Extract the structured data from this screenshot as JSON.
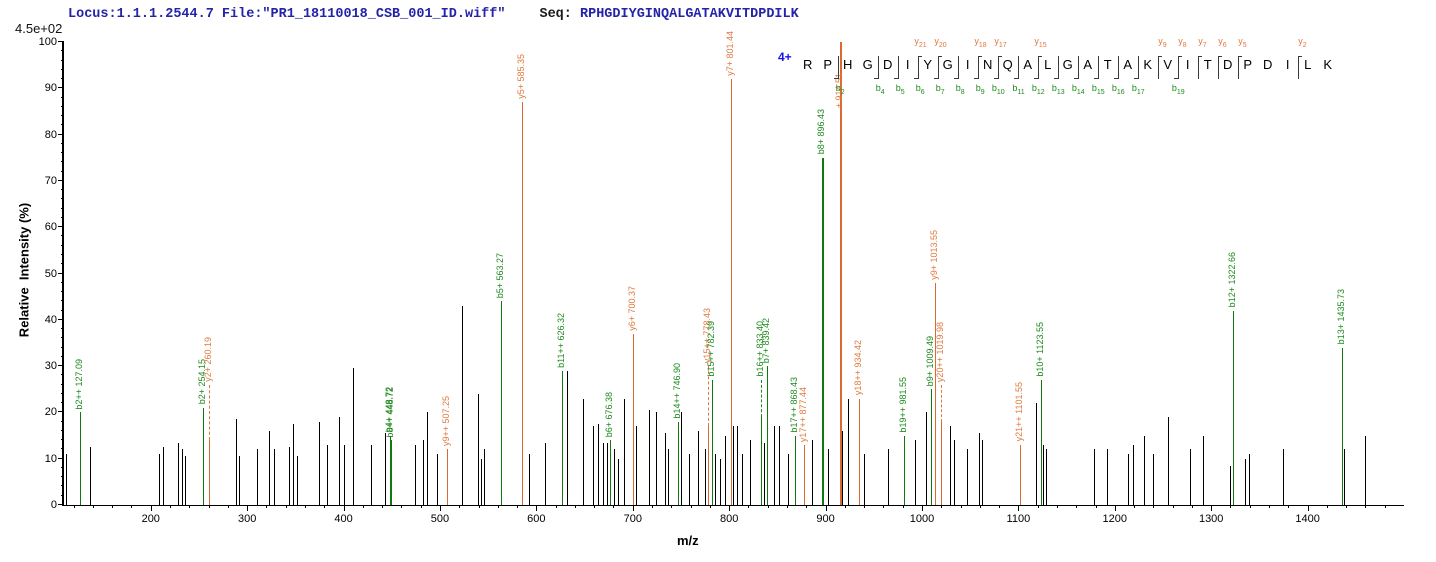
{
  "header": {
    "locus_file": "Locus:1.1.1.2544.7 File:\"PR1_18110018_CSB_001_ID.wiff\"",
    "seq_label": "Seq:",
    "sequence": "RPHGDIYGINQALGATAKVITDPDILK"
  },
  "colors": {
    "title": "#2424a8",
    "charge": "#1414e6",
    "b_ion_label": "#1d8a1d",
    "b_ion_peak": "#0e7a0e",
    "y_ion_label": "#e0793f",
    "y_ion_peak": "#d96b32",
    "unlabeled_peak": "#000000",
    "axis": "#000000"
  },
  "axes": {
    "y_label": "Relative  Intensity (%)",
    "x_label": "m/z",
    "y_max_label": "4.5e+02",
    "x_range": [
      110,
      1500
    ],
    "y_range": [
      0,
      100
    ],
    "x_ticks": [
      200,
      300,
      400,
      500,
      600,
      700,
      800,
      900,
      1000,
      1100,
      1200,
      1300,
      1400
    ],
    "y_ticks": [
      0,
      10,
      20,
      30,
      40,
      50,
      60,
      70,
      80,
      90,
      100
    ],
    "x_minor_step": 20,
    "y_minor_step": 2
  },
  "sequence_map": {
    "charge_label": "4+",
    "residues": [
      {
        "aa": "R"
      },
      {
        "aa": "P",
        "b": "b2"
      },
      {
        "aa": "H"
      },
      {
        "aa": "G",
        "b": "b4"
      },
      {
        "aa": "D",
        "b": "b5"
      },
      {
        "aa": "I",
        "b": "b6",
        "y": "y21"
      },
      {
        "aa": "Y",
        "b": "b7",
        "y": "y20"
      },
      {
        "aa": "G",
        "b": "b8"
      },
      {
        "aa": "I",
        "b": "b9",
        "y": "y18"
      },
      {
        "aa": "N",
        "b": "b10",
        "y": "y17"
      },
      {
        "aa": "Q",
        "b": "b11"
      },
      {
        "aa": "A",
        "b": "b12",
        "y": "y15"
      },
      {
        "aa": "L",
        "b": "b13"
      },
      {
        "aa": "G",
        "b": "b14"
      },
      {
        "aa": "A",
        "b": "b15"
      },
      {
        "aa": "T",
        "b": "b16"
      },
      {
        "aa": "A",
        "b": "b17"
      },
      {
        "aa": "K",
        "y": "y9"
      },
      {
        "aa": "V",
        "b": "b19",
        "y": "y8"
      },
      {
        "aa": "I",
        "y": "y7"
      },
      {
        "aa": "T",
        "y": "y6"
      },
      {
        "aa": "D",
        "y": "y5"
      },
      {
        "aa": "P"
      },
      {
        "aa": "D"
      },
      {
        "aa": "I",
        "y": "y2"
      },
      {
        "aa": "L"
      },
      {
        "aa": "K"
      }
    ]
  },
  "chart_data": {
    "type": "bar",
    "subtype": "ms2-fragment-spectrum",
    "title": "Locus:1.1.1.2544.7 File:\"PR1_18110018_CSB_001_ID.wiff\" Seq: RPHGDIYGINQALGATAKVITDPDILK",
    "xlabel": "m/z",
    "ylabel": "Relative  Intensity (%)",
    "xlim": [
      110,
      1500
    ],
    "ylim": [
      0,
      100
    ],
    "intensity_scale_max": "4.5e+02",
    "precursor_charge": "4+",
    "labeled_peaks": [
      {
        "mz": 127.09,
        "pct": 20,
        "ion": "b",
        "label": "b2++ 127.09"
      },
      {
        "mz": 254.15,
        "pct": 21,
        "ion": "b",
        "label": "b2+ 254.15"
      },
      {
        "mz": 260.19,
        "pct": 14,
        "ion": "y",
        "label": "y2+ 260.19",
        "dashed": true,
        "label_at": 26
      },
      {
        "mz": 448.3,
        "pct": 15,
        "ion": "b",
        "label": "b4+ 448.72"
      },
      {
        "mz": 449.1,
        "pct": 14,
        "ion": "b",
        "label": "b8++ 448.72"
      },
      {
        "mz": 507.25,
        "pct": 12,
        "ion": "y",
        "label": "y9++ 507.25"
      },
      {
        "mz": 563.27,
        "pct": 44,
        "ion": "b",
        "label": "b5+ 563.27"
      },
      {
        "mz": 585.35,
        "pct": 87,
        "ion": "y",
        "label": "y5+ 585.35"
      },
      {
        "mz": 626.32,
        "pct": 29,
        "ion": "b",
        "label": "b11++ 626.32"
      },
      {
        "mz": 676.38,
        "pct": 14,
        "ion": "b",
        "label": "b6+ 676.38"
      },
      {
        "mz": 700.37,
        "pct": 37,
        "ion": "y",
        "label": "y6+ 700.37"
      },
      {
        "mz": 746.9,
        "pct": 18,
        "ion": "b",
        "label": "b14++ 746.90"
      },
      {
        "mz": 778.43,
        "pct": 17,
        "ion": "y",
        "label": "y15++ 778.43",
        "dashed": true,
        "label_at": 30
      },
      {
        "mz": 782.39,
        "pct": 27,
        "ion": "b",
        "label": "b15++ 782.39"
      },
      {
        "mz": 801.44,
        "pct": 92,
        "ion": "y",
        "label": "y7+ 801.44"
      },
      {
        "mz": 833.4,
        "pct": 19,
        "ion": "b",
        "label": "b16++ 833.40",
        "dashed": true,
        "label_at": 27
      },
      {
        "mz": 839.42,
        "pct": 30,
        "ion": "b",
        "label": "b7+ 839.42"
      },
      {
        "mz": 868.43,
        "pct": 15,
        "ion": "b",
        "label": "b17++ 868.43"
      },
      {
        "mz": 877.44,
        "pct": 13,
        "ion": "y",
        "label": "y17++ 877.44"
      },
      {
        "mz": 896.43,
        "pct": 75,
        "ion": "b",
        "label": "b8+ 896.43",
        "w": 2
      },
      {
        "mz": 914.51,
        "pct": 100,
        "ion": "y",
        "label": "+ 914.51",
        "label_at": 85,
        "w": 2
      },
      {
        "mz": 934.42,
        "pct": 23,
        "ion": "y",
        "label": "y18++ 934.42"
      },
      {
        "mz": 981.55,
        "pct": 15,
        "ion": "b",
        "label": "b19++ 981.55"
      },
      {
        "mz": 1009.49,
        "pct": 25,
        "ion": "b",
        "label": "b9+ 1009.49"
      },
      {
        "mz": 1013.55,
        "pct": 48,
        "ion": "y",
        "label": "y9+ 1013.55"
      },
      {
        "mz": 1019.98,
        "pct": 18,
        "ion": "y",
        "label": "y20++ 1019.98",
        "dashed": true,
        "label_at": 26
      },
      {
        "mz": 1101.55,
        "pct": 13,
        "ion": "y",
        "label": "y21++ 1101.55"
      },
      {
        "mz": 1123.55,
        "pct": 27,
        "ion": "b",
        "label": "b10+ 1123.55"
      },
      {
        "mz": 1322.66,
        "pct": 42,
        "ion": "b",
        "label": "b12+ 1322.66"
      },
      {
        "mz": 1435.73,
        "pct": 34,
        "ion": "b",
        "label": "b13+ 1435.73"
      }
    ],
    "unlabeled_peaks": [
      [
        112,
        11
      ],
      [
        137,
        12.5
      ],
      [
        209,
        11
      ],
      [
        213,
        12.5
      ],
      [
        228,
        13.5
      ],
      [
        232,
        12
      ],
      [
        236,
        10.5
      ],
      [
        288,
        18.5
      ],
      [
        292,
        10.5
      ],
      [
        310,
        12
      ],
      [
        323,
        16
      ],
      [
        328,
        12
      ],
      [
        343,
        12.5
      ],
      [
        348,
        17.5
      ],
      [
        352,
        10.5
      ],
      [
        375,
        18
      ],
      [
        383,
        13
      ],
      [
        395,
        19
      ],
      [
        400,
        13
      ],
      [
        410,
        29.5
      ],
      [
        428,
        13
      ],
      [
        443,
        15.5
      ],
      [
        474,
        13
      ],
      [
        482,
        14
      ],
      [
        487,
        20
      ],
      [
        497,
        11
      ],
      [
        523,
        43
      ],
      [
        539,
        24
      ],
      [
        543,
        10
      ],
      [
        546,
        12
      ],
      [
        592,
        11
      ],
      [
        609,
        13.5
      ],
      [
        632,
        29
      ],
      [
        648,
        23
      ],
      [
        659,
        17
      ],
      [
        664,
        17.5
      ],
      [
        669,
        13.5
      ],
      [
        673,
        13.5
      ],
      [
        681,
        12
      ],
      [
        685,
        10
      ],
      [
        691,
        23
      ],
      [
        703,
        17
      ],
      [
        717,
        20.5
      ],
      [
        724,
        20
      ],
      [
        733,
        15.5
      ],
      [
        737,
        12
      ],
      [
        750,
        20
      ],
      [
        758,
        11
      ],
      [
        768,
        16
      ],
      [
        775,
        12
      ],
      [
        785,
        11
      ],
      [
        790,
        10
      ],
      [
        796,
        15
      ],
      [
        804,
        17
      ],
      [
        808,
        17
      ],
      [
        813,
        11
      ],
      [
        822,
        14
      ],
      [
        836,
        13.5
      ],
      [
        846,
        17
      ],
      [
        852,
        17
      ],
      [
        861,
        11
      ],
      [
        886,
        14
      ],
      [
        903,
        12
      ],
      [
        917,
        16
      ],
      [
        923,
        23
      ],
      [
        940,
        11
      ],
      [
        965,
        12
      ],
      [
        993,
        14
      ],
      [
        1004,
        20
      ],
      [
        1029,
        17
      ],
      [
        1033,
        14
      ],
      [
        1047,
        12
      ],
      [
        1059,
        15.5
      ],
      [
        1062,
        14
      ],
      [
        1118,
        22
      ],
      [
        1126,
        13
      ],
      [
        1129,
        12
      ],
      [
        1178,
        12
      ],
      [
        1192,
        12
      ],
      [
        1214,
        11
      ],
      [
        1219,
        13
      ],
      [
        1230,
        15
      ],
      [
        1240,
        11
      ],
      [
        1255,
        19
      ],
      [
        1278,
        12
      ],
      [
        1291,
        15
      ],
      [
        1320,
        8.5
      ],
      [
        1335,
        10
      ],
      [
        1339,
        11
      ],
      [
        1374,
        12
      ],
      [
        1438,
        12
      ],
      [
        1460,
        15
      ]
    ]
  }
}
